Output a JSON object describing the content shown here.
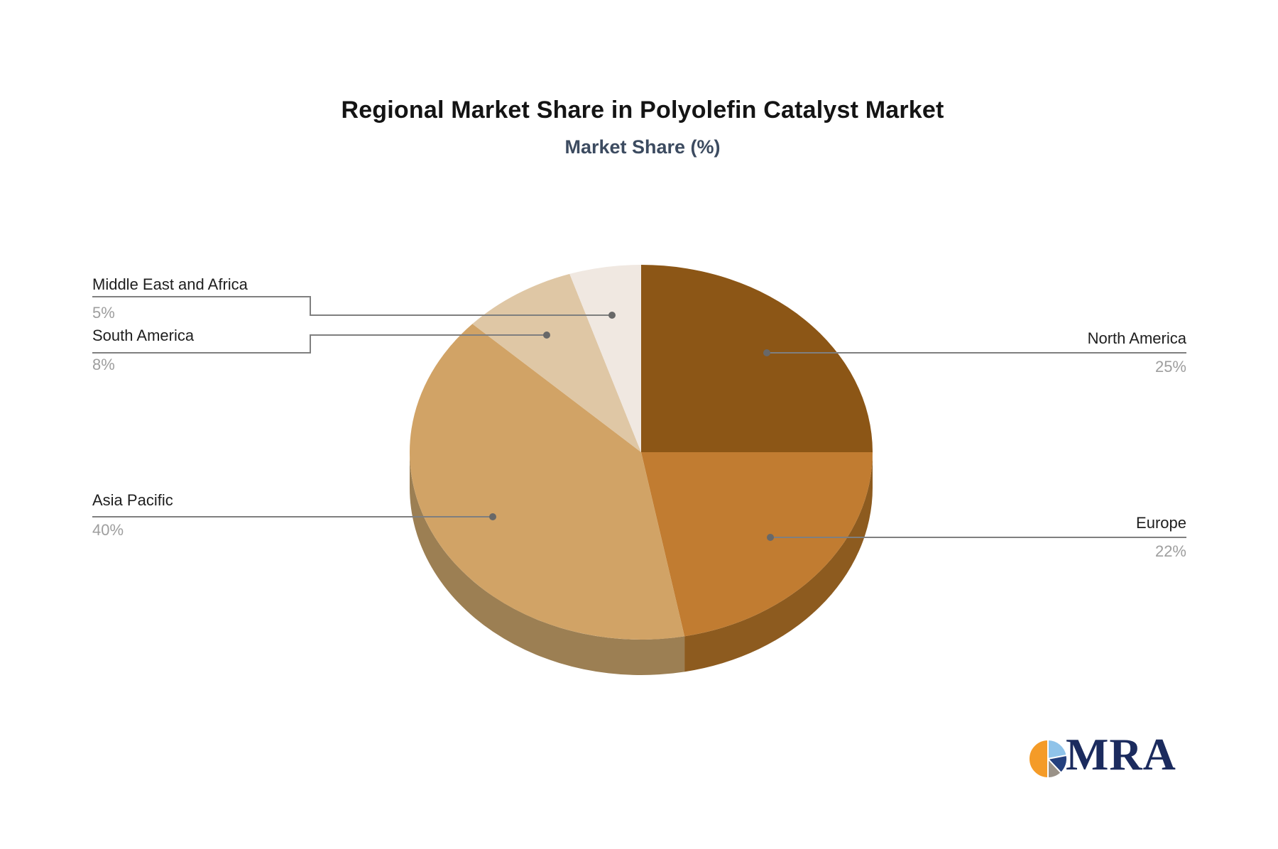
{
  "chart_data": {
    "type": "pie",
    "title": "Regional Market Share in Polyolefin Catalyst Market",
    "subtitle": "Market Share (%)",
    "unit": "%",
    "three_d": true,
    "start_angle_deg": 0,
    "direction": "clockwise",
    "legend": "none (callout labels)",
    "slices": [
      {
        "label": "North America",
        "value": 25,
        "display": "25%",
        "color": "#8C5616",
        "side_color": "#7A4A12",
        "callout_side": "right"
      },
      {
        "label": "Europe",
        "value": 22,
        "display": "22%",
        "color": "#C17C31",
        "side_color": "#8D5B1F",
        "callout_side": "right"
      },
      {
        "label": "Asia Pacific",
        "value": 40,
        "display": "40%",
        "color": "#D1A366",
        "side_color": "#9C7F53",
        "callout_side": "left"
      },
      {
        "label": "South America",
        "value": 8,
        "display": "8%",
        "color": "#DFC7A5",
        "side_color": "#B99B73",
        "callout_side": "left"
      },
      {
        "label": "Middle East and Africa",
        "value": 5,
        "display": "5%",
        "color": "#F0E8E1",
        "side_color": "#C9BDB2",
        "callout_side": "left"
      }
    ]
  },
  "style_colors": {
    "title_text": "#141414",
    "subtitle_text": "#3C4B60",
    "label_text": "#1E1E1E",
    "percent_text": "#9E9E9E",
    "callout_line": "#7F7F7F",
    "callout_dot": "#686868",
    "background": "#FFFFFF"
  },
  "logo": {
    "text": "MRA",
    "text_color": "#1B2B5E",
    "mark_slices": [
      {
        "name": "light-blue",
        "value": 22,
        "color": "#8FC3E9"
      },
      {
        "name": "navy",
        "value": 16,
        "color": "#24407E"
      },
      {
        "name": "gray",
        "value": 12,
        "color": "#9A9288"
      },
      {
        "name": "orange",
        "value": 50,
        "color": "#F49B28"
      }
    ]
  }
}
